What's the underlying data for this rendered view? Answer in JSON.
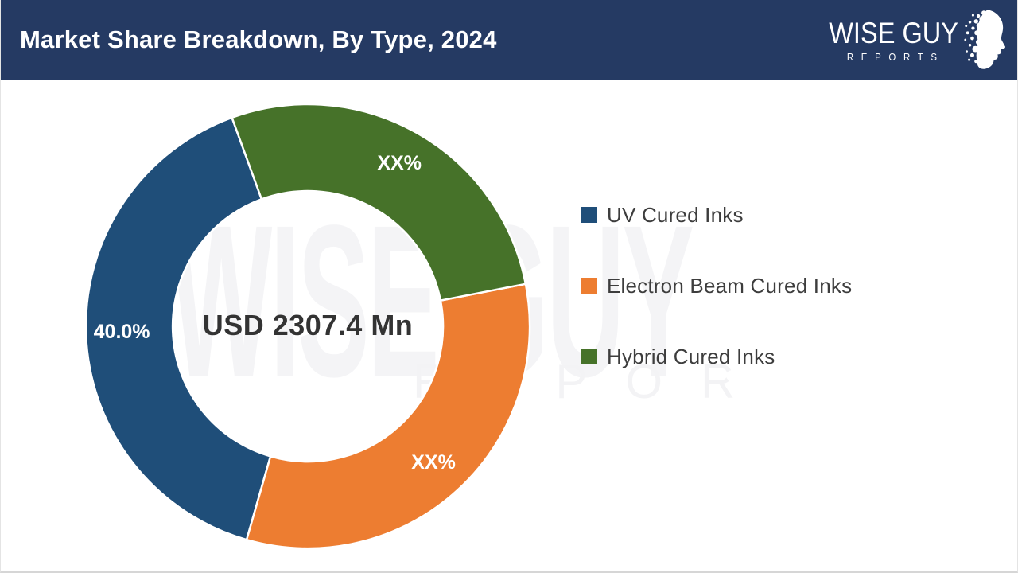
{
  "header": {
    "title": "Market Share Breakdown, By Type, 2024",
    "background_color": "#253A63",
    "logo": {
      "word": "WISE GUY",
      "sub": "REPORTS"
    }
  },
  "watermark": {
    "line1": "WISE GUY",
    "line2": "REPORTS"
  },
  "chart_data": {
    "type": "donut",
    "title": "Market Share Breakdown, By Type, 2024",
    "center_label": "USD 2307.4 Mn",
    "legend_position": "right",
    "geometry": {
      "outer_radius": 279,
      "inner_radius": 170,
      "label_radius": 234,
      "direction": "clockwise"
    },
    "slices": [
      {
        "label": "UV Cured Inks",
        "display_label": "40.0%",
        "value_pct": 40.0,
        "color": "#1F4E79",
        "start_deg": 196,
        "span_deg": 144
      },
      {
        "label": "Electron Beam Cured Inks",
        "display_label": "XX%",
        "value_pct": null,
        "approx_pct": 32.5,
        "color": "#ED7D31",
        "start_deg": 79,
        "span_deg": 117
      },
      {
        "label": "Hybrid Cured Inks",
        "display_label": "XX%",
        "value_pct": null,
        "approx_pct": 27.5,
        "color": "#467229",
        "start_deg": 340,
        "span_deg": 99
      }
    ]
  }
}
